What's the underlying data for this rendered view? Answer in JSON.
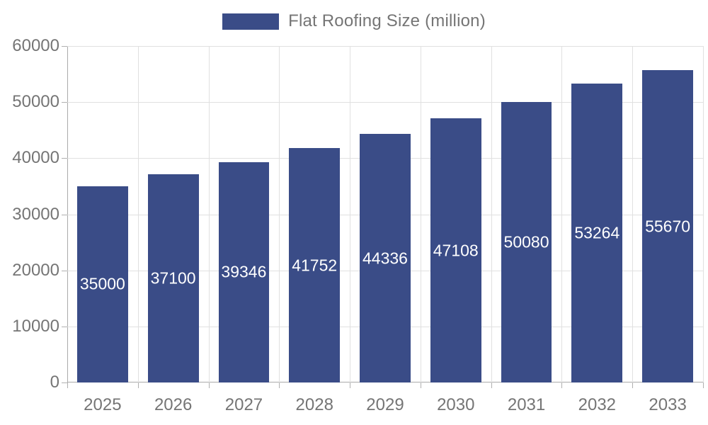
{
  "colors": {
    "bar": "#3a4c87",
    "grid": "#e0e0e0",
    "axis": "#aaaaaa",
    "tick": "#b0b0b0",
    "axis_text": "#757575",
    "bar_label": "#ffffff",
    "background": "#ffffff"
  },
  "legend": {
    "label": "Flat Roofing Size (million)"
  },
  "chart_data": {
    "type": "bar",
    "title": "Flat Roofing Size (million)",
    "categories": [
      "2025",
      "2026",
      "2027",
      "2028",
      "2029",
      "2030",
      "2031",
      "2032",
      "2033"
    ],
    "series": [
      {
        "name": "Flat Roofing Size (million)",
        "values": [
          35000,
          37100,
          39346,
          41752,
          44336,
          47108,
          50080,
          53264,
          55670
        ]
      }
    ],
    "xlabel": "",
    "ylabel": "",
    "ylim": [
      0,
      60000
    ],
    "yticks": [
      0,
      10000,
      20000,
      30000,
      40000,
      50000,
      60000
    ],
    "grid": true,
    "legend_position": "top",
    "bar_labels_inside": true
  }
}
